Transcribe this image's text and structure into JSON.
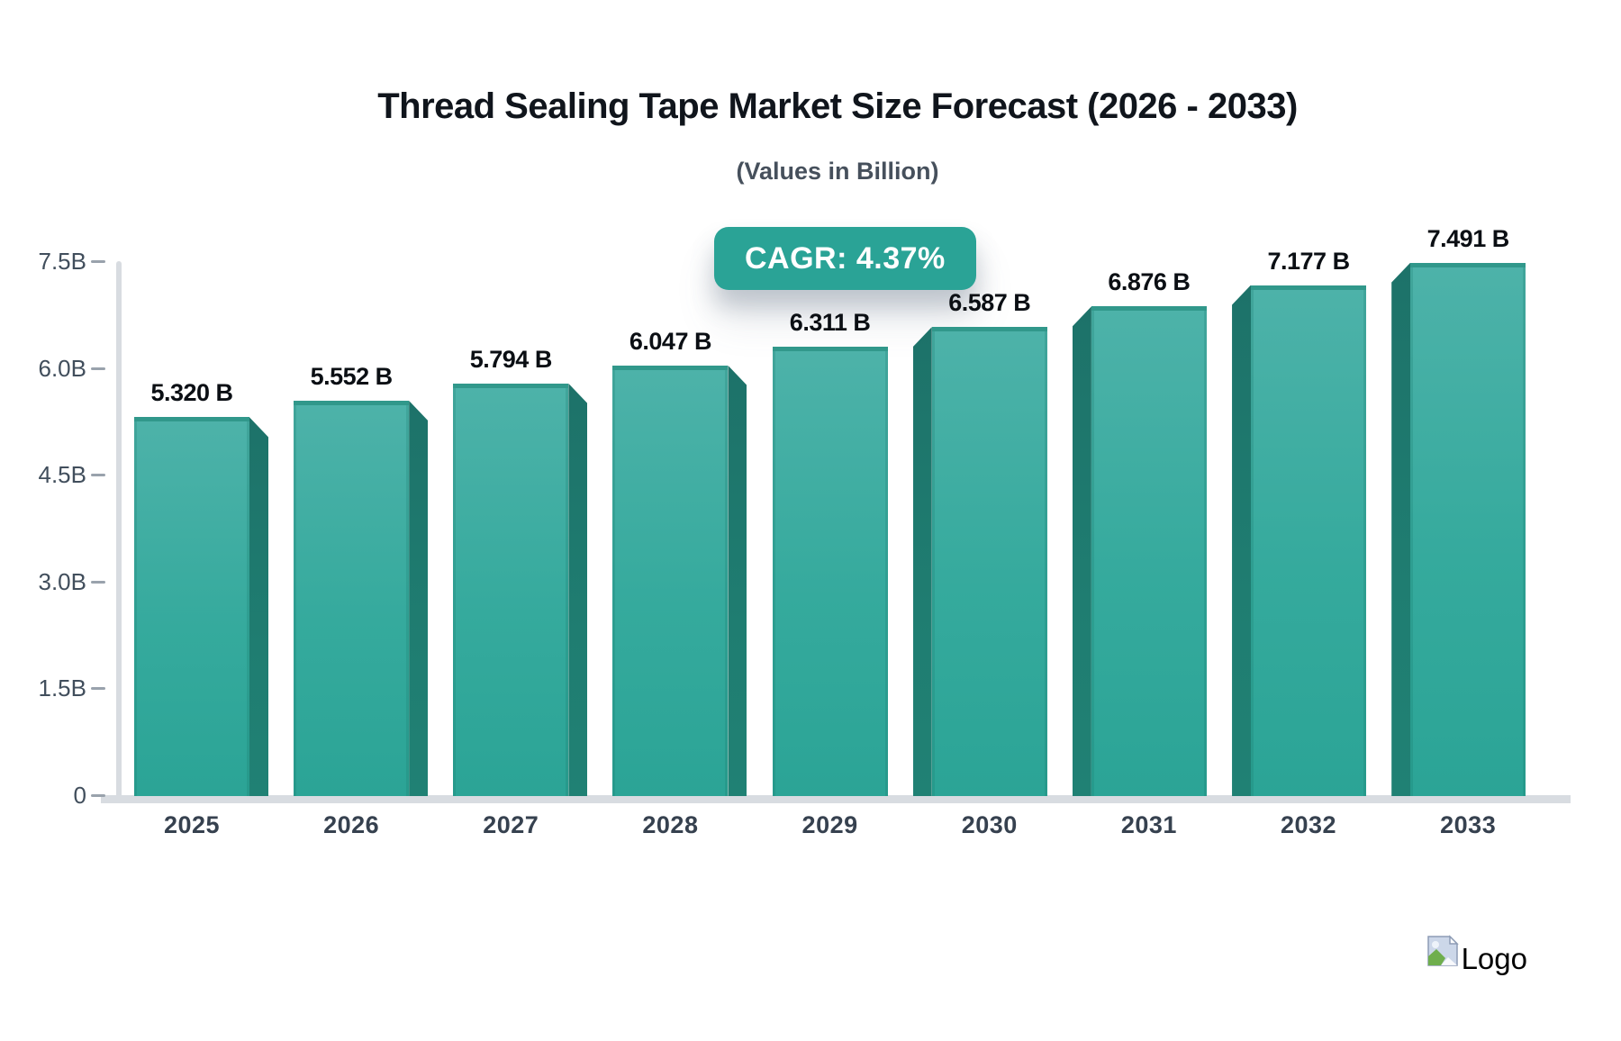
{
  "header": {
    "title": "Thread Sealing Tape Market Size Forecast (2026 - 2033)",
    "subtitle": "(Values in Billion)"
  },
  "badge": {
    "label": "CAGR: 4.37%"
  },
  "logo": {
    "alt_text": "Logo"
  },
  "colors": {
    "accent": "#2aa396",
    "bar_face_top": "#4db2a9",
    "bar_face_bottom": "#2ba496",
    "bar_side": "#1f7d71",
    "bar_top_edge": "#31988b",
    "axis": "#d8dce1",
    "tick": "#99a2ac",
    "axis_text": "#414e5c",
    "year_text": "#36414f",
    "value_text": "#0b0f14",
    "badge_text": "#ffffff"
  },
  "chart_data": {
    "type": "bar",
    "title": "Thread Sealing Tape Market Size Forecast (2026 - 2033)",
    "subtitle": "(Values in Billion)",
    "unit": "Billion",
    "categories": [
      "2025",
      "2026",
      "2027",
      "2028",
      "2029",
      "2030",
      "2031",
      "2032",
      "2033"
    ],
    "values": [
      5.32,
      5.552,
      5.794,
      6.047,
      6.311,
      6.587,
      6.876,
      7.177,
      7.491
    ],
    "value_labels": [
      "5.320 B",
      "5.552 B",
      "5.794 B",
      "6.047 B",
      "6.311 B",
      "6.587 B",
      "6.876 B",
      "7.177 B",
      "7.491 B"
    ],
    "annotation": "CAGR: 4.37%",
    "ylabel": "",
    "xlabel": "",
    "ylim": [
      0,
      7.5
    ],
    "ytick_labels": [
      "7.5B",
      "6.0B",
      "4.5B",
      "3.0B",
      "1.5B",
      "0"
    ],
    "ytick_values": [
      7.5,
      6.0,
      4.5,
      3.0,
      1.5,
      0
    ],
    "grid": false,
    "legend_position": "none"
  }
}
